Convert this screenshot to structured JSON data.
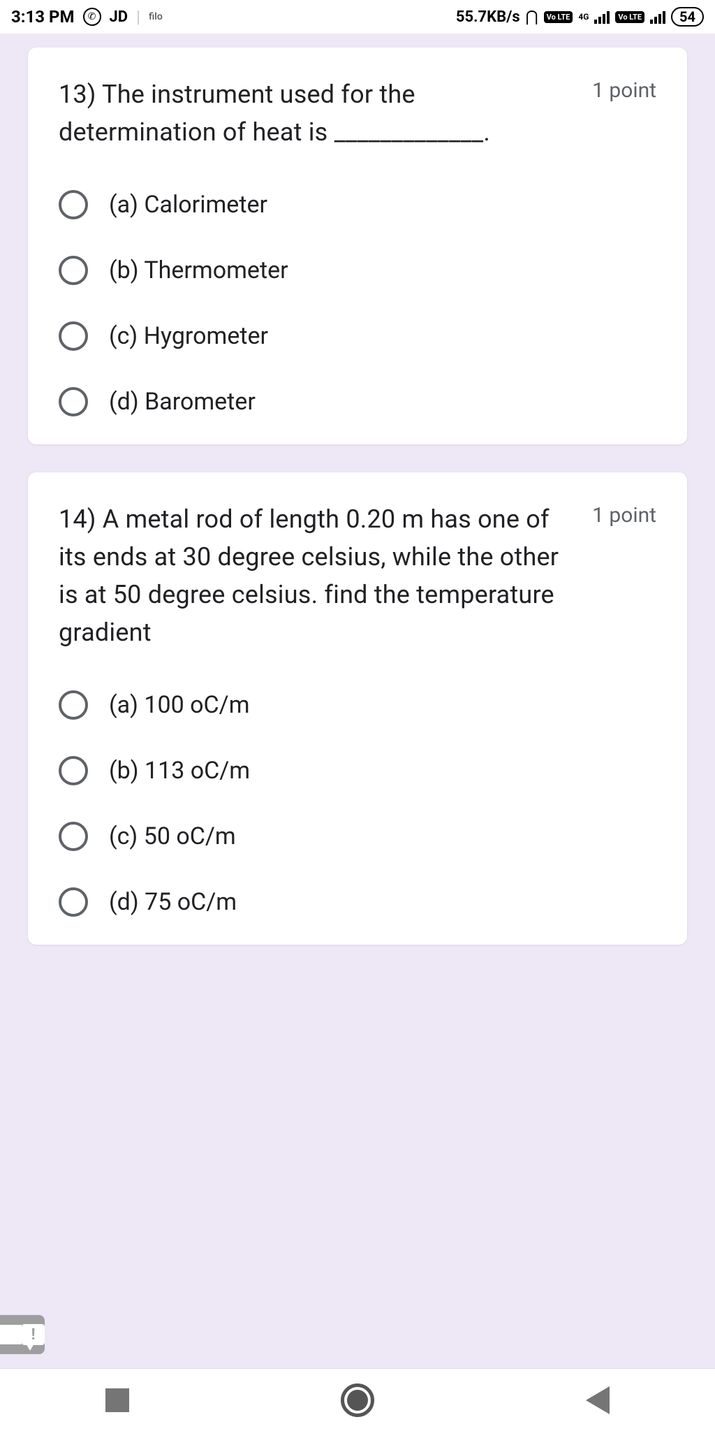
{
  "status_bar": {
    "time": "3:13 PM",
    "app1": "JD",
    "app2": "filo",
    "speed": "55.7KB/s",
    "network": "4G",
    "lte": "Vo LTE",
    "battery": "54"
  },
  "questions": [
    {
      "number": "13)",
      "text": "The instrument used for the determination of heat is _____________.",
      "points": "1 point",
      "options": [
        "(a) Calorimeter",
        "(b) Thermometer",
        "(c) Hygrometer",
        "(d) Barometer"
      ]
    },
    {
      "number": "14)",
      "text": "A metal rod of length 0.20 m has one of its ends at 30 degree celsius, while the other is at 50 degree celsius. find the temperature gradient",
      "points": "1 point",
      "options": [
        "(a) 100 oC/m",
        "(b) 113 oC/m",
        "(c) 50 oC/m",
        "(d) 75 oC/m"
      ]
    }
  ],
  "feedback": "!",
  "colors": {
    "page_bg": "#ede7f6",
    "card_bg": "#ffffff",
    "text_primary": "#202124",
    "text_secondary": "#5f6368",
    "radio_border": "#5f6368",
    "nav_icon": "#757575",
    "feedback_bg": "#9e9e9e"
  }
}
